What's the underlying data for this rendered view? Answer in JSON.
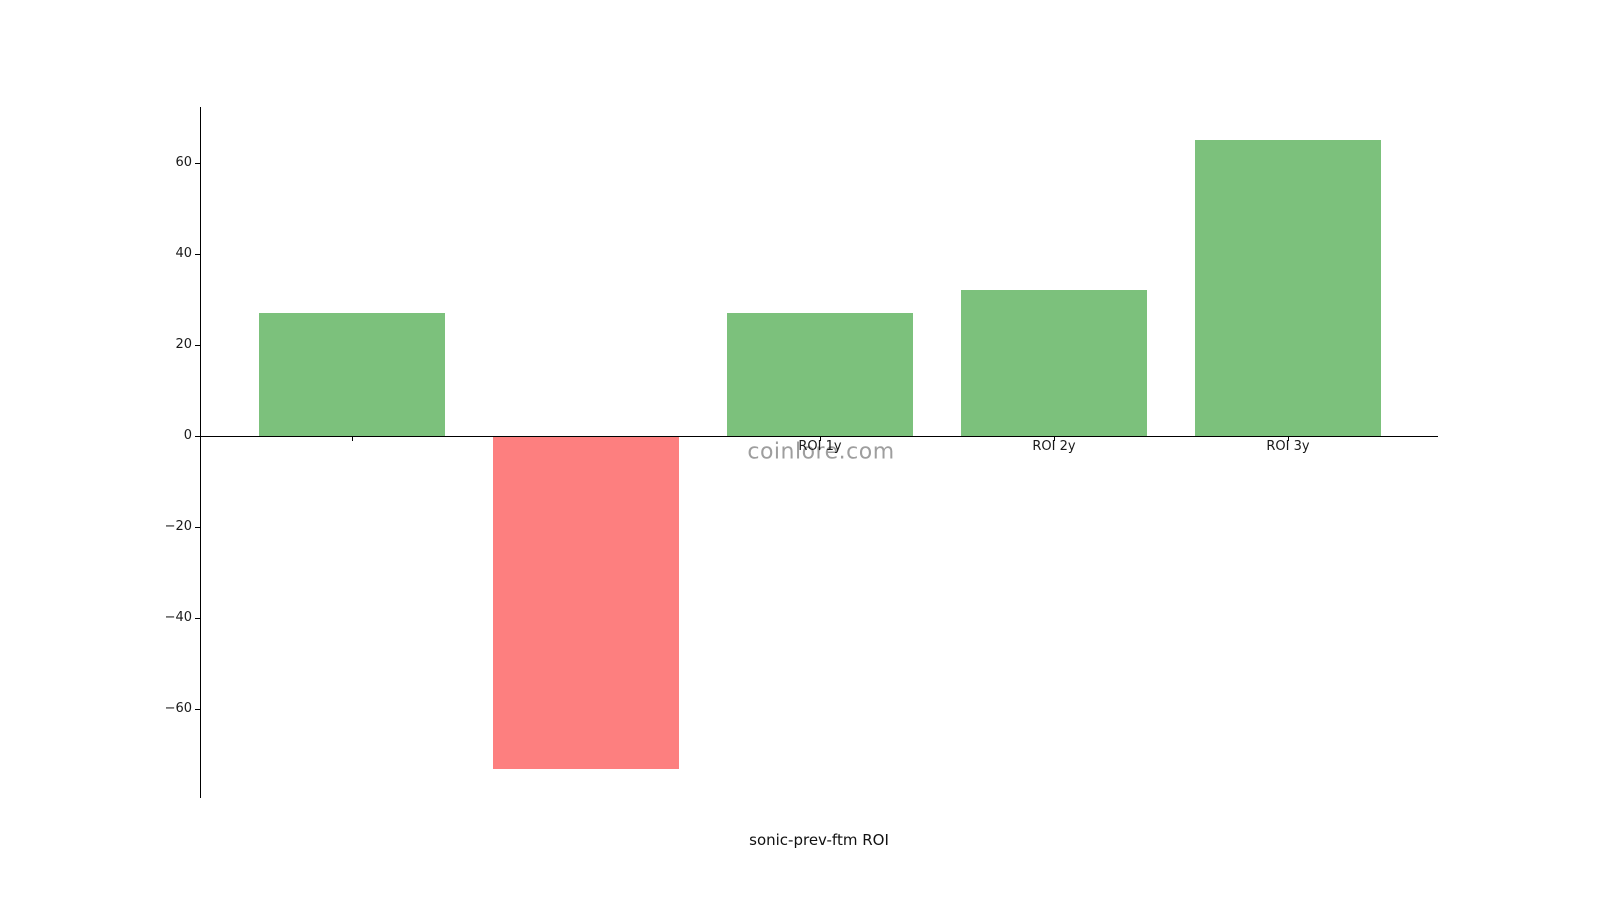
{
  "chart_data": {
    "type": "bar",
    "title": "sonic-prev-ftm ROI",
    "watermark": "coinlore.com",
    "categories": [
      "",
      "",
      "ROI 1y",
      "ROI 2y",
      "ROI 3y"
    ],
    "values": [
      27,
      -73,
      27,
      32,
      65
    ],
    "series": [
      {
        "name": "ROI",
        "values": [
          27,
          -73,
          27,
          32,
          65
        ]
      }
    ],
    "colors": {
      "positive": "#7cc17c",
      "negative": "#fd7f7f",
      "axis": "#000000",
      "watermark": "#9b9b9b"
    },
    "y_ticks": [
      {
        "v": 60,
        "label": "60"
      },
      {
        "v": 40,
        "label": "40"
      },
      {
        "v": 20,
        "label": "20"
      },
      {
        "v": 0,
        "label": "0"
      },
      {
        "v": -20,
        "label": "−20"
      },
      {
        "v": -40,
        "label": "−40"
      },
      {
        "v": -60,
        "label": "−60"
      }
    ],
    "x_tick_visible": [
      true,
      false,
      true,
      true,
      true
    ],
    "xlabel": "",
    "ylabel": "",
    "ylim": [
      -79.5,
      72.3
    ],
    "grid": false,
    "legend": "none"
  }
}
